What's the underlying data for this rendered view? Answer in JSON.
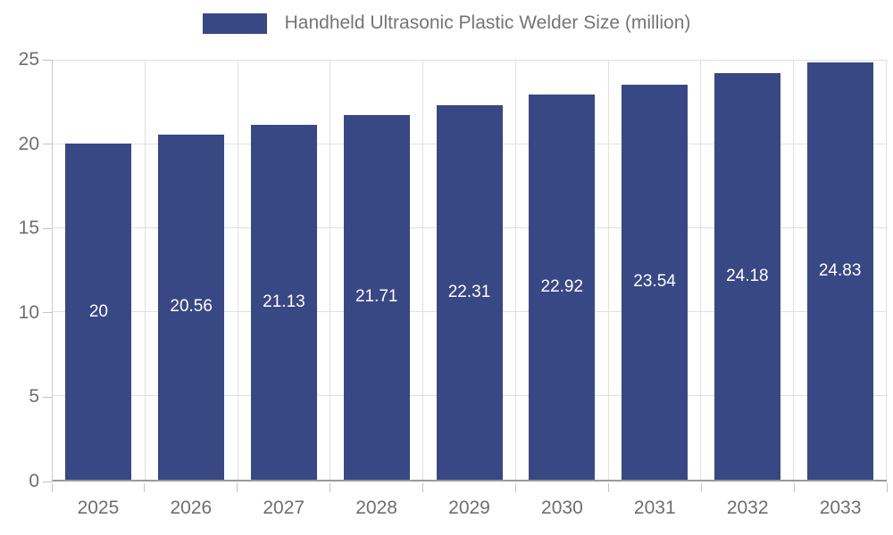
{
  "chart_data": {
    "type": "bar",
    "title": "Handheld Ultrasonic Plastic Welder Size (million)",
    "categories": [
      "2025",
      "2026",
      "2027",
      "2028",
      "2029",
      "2030",
      "2031",
      "2032",
      "2033"
    ],
    "values": [
      20,
      20.56,
      21.13,
      21.71,
      22.31,
      22.92,
      23.54,
      24.18,
      24.83
    ],
    "value_labels": [
      "20",
      "20.56",
      "21.13",
      "21.71",
      "22.31",
      "22.92",
      "23.54",
      "24.18",
      "24.83"
    ],
    "xlabel": "",
    "ylabel": "",
    "ylim": [
      0,
      25
    ],
    "yticks": [
      0,
      5,
      10,
      15,
      20,
      25
    ],
    "grid": true,
    "legend_position": "top",
    "colors": {
      "bar": "#384885",
      "value_label": "#ffffff",
      "axis_text": "#6e6e6e",
      "legend_text": "#757575",
      "grid_line": "#e0e0e0",
      "axis_line": "#999999"
    }
  }
}
